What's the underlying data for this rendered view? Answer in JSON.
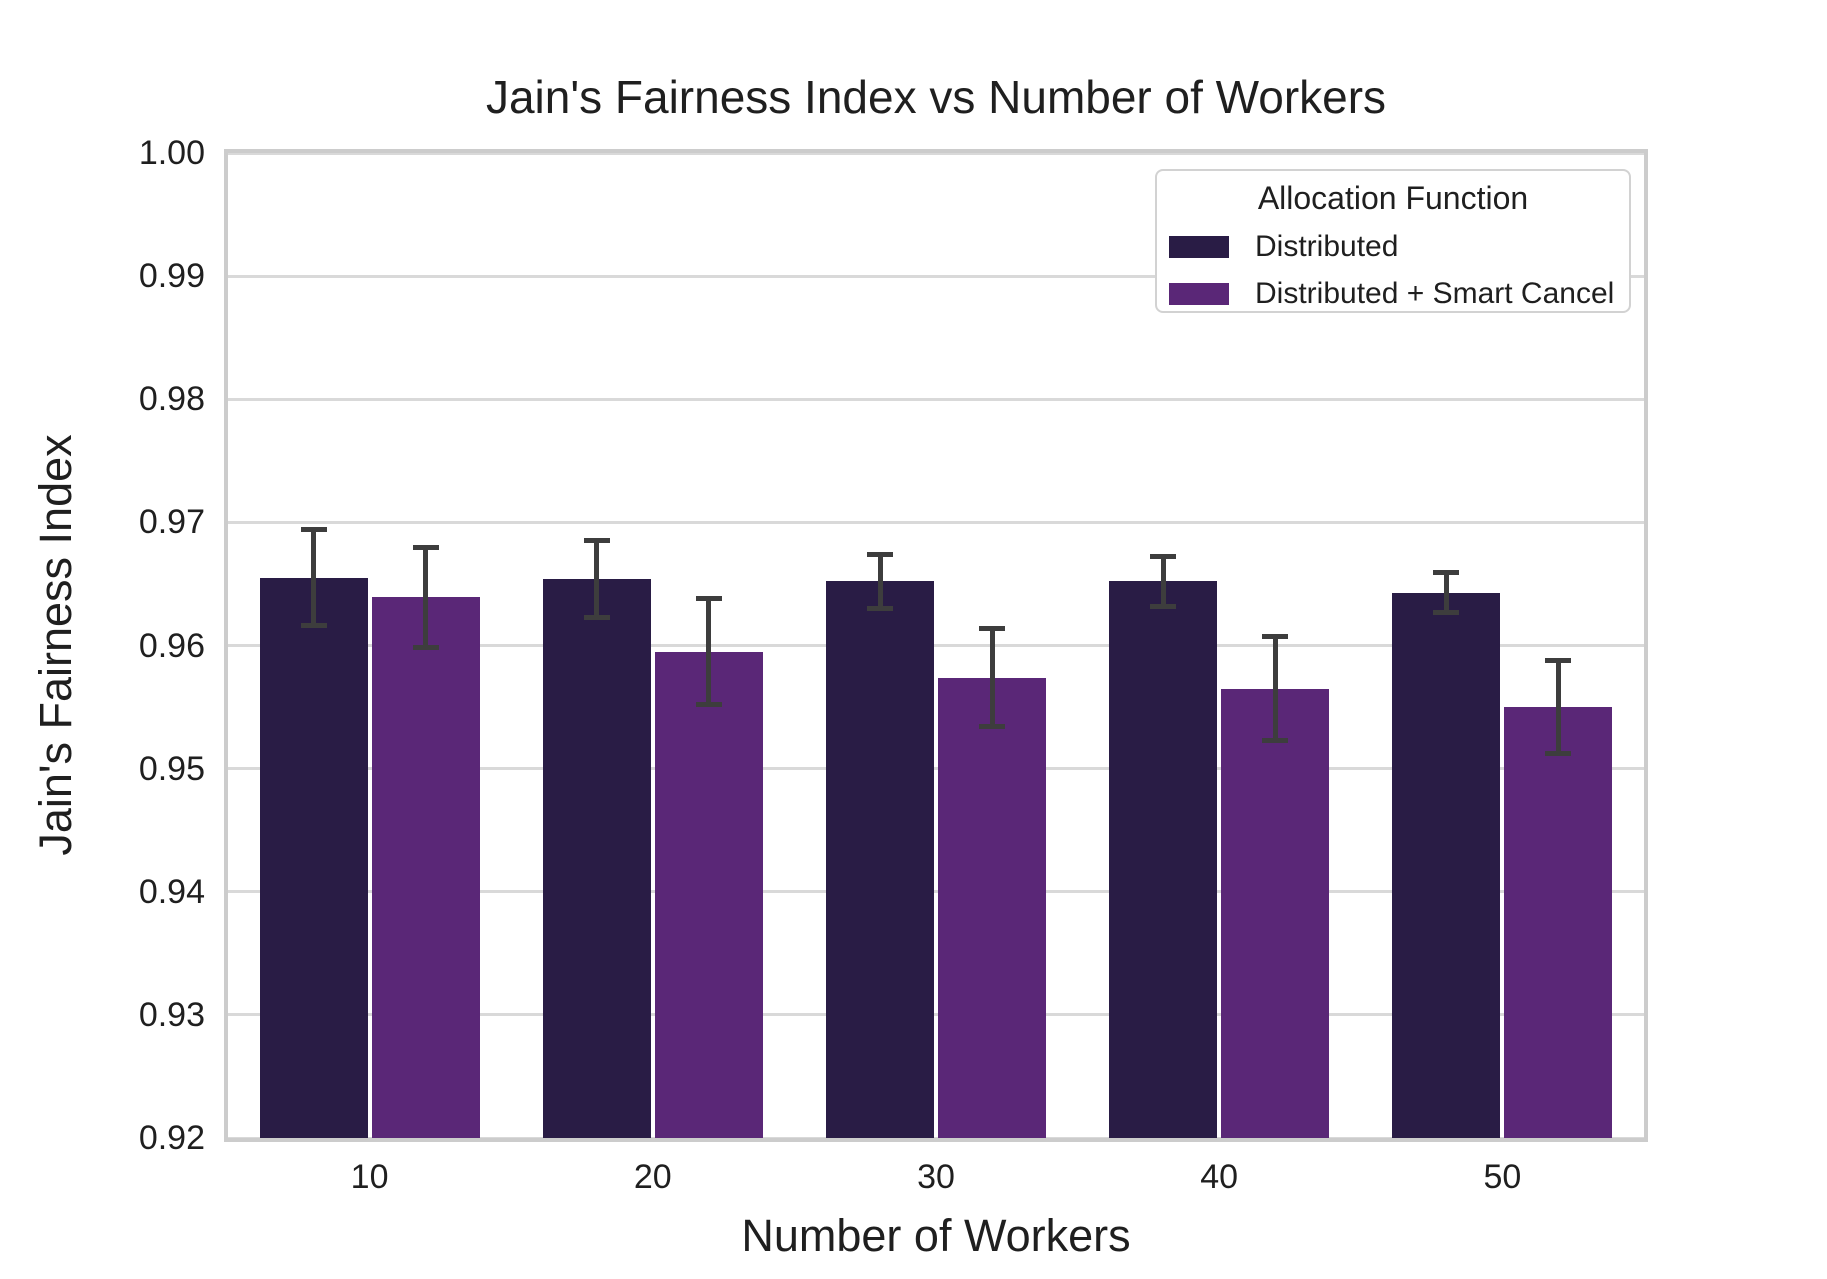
{
  "chart_data": {
    "type": "bar",
    "title": "Jain's Fairness Index vs Number of Workers",
    "xlabel": "Number of Workers",
    "ylabel": "Jain's Fairness Index",
    "categories": [
      "10",
      "20",
      "30",
      "40",
      "50"
    ],
    "series": [
      {
        "name": "Distributed",
        "color": "#291c45",
        "values": [
          0.9655,
          0.9654,
          0.9652,
          0.9652,
          0.9643
        ],
        "errors": [
          0.0041,
          0.0033,
          0.0024,
          0.0022,
          0.0018
        ]
      },
      {
        "name": "Distributed + Smart Cancel",
        "color": "#5a2777",
        "values": [
          0.9639,
          0.9595,
          0.9574,
          0.9565,
          0.955
        ],
        "errors": [
          0.0043,
          0.0045,
          0.0042,
          0.0044,
          0.004
        ]
      }
    ],
    "ylim": [
      0.92,
      1.0
    ],
    "yticks": [
      "1.00",
      "0.99",
      "0.98",
      "0.97",
      "0.96",
      "0.95",
      "0.94",
      "0.93",
      "0.92"
    ],
    "legend": {
      "title": "Allocation Function",
      "position": "upper right"
    },
    "grid": true,
    "colors": {
      "error_bar": "#3d3d3d",
      "gridline": "#d9d9d9",
      "frame": "#cccccc",
      "text": "#1f1f1f",
      "background": "#ffffff"
    }
  }
}
